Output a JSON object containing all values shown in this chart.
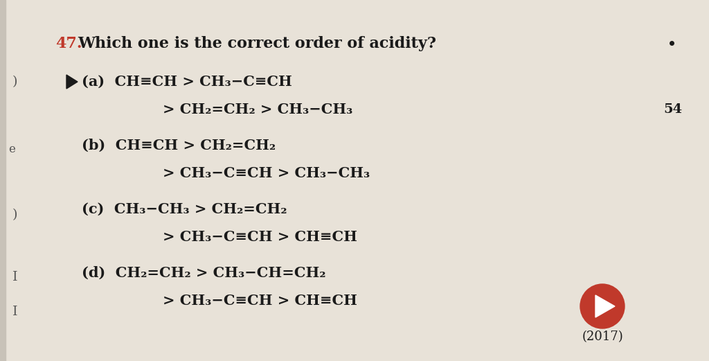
{
  "title_num": "47.",
  "title_text": "Which one is the correct order of acidity?",
  "background_color": "#e8e2d8",
  "page_color": "#ddd8cc",
  "text_color": "#1a1a1a",
  "red_color": "#c0392b",
  "option_a_line1": "(a)  CH≡CH > CH₃−C≡CH",
  "option_a_line2": "> CH₂=CH₂ > CH₃−CH₃",
  "option_b_line1": "(b)  CH≡CH > CH₂=CH₂",
  "option_b_line2": "> CH₃−C≡CH > CH₃−CH₃",
  "option_c_line1": "(c)  CH₃−CH₃ > CH₂=CH₂",
  "option_c_line2": "> CH₃−C≡CH > CH≡CH",
  "option_d_line1": "(d)  CH₂=CH₂ > CH₃−CH=CH₂",
  "option_d_line2": "> CH₃−C≡CH > CH≡CH",
  "year_label": "(2017)",
  "side_number": "54",
  "fontsize_title_num": 16,
  "fontsize_title": 16,
  "fontsize_options": 15,
  "fontsize_side": 14,
  "fontsize_year": 13
}
